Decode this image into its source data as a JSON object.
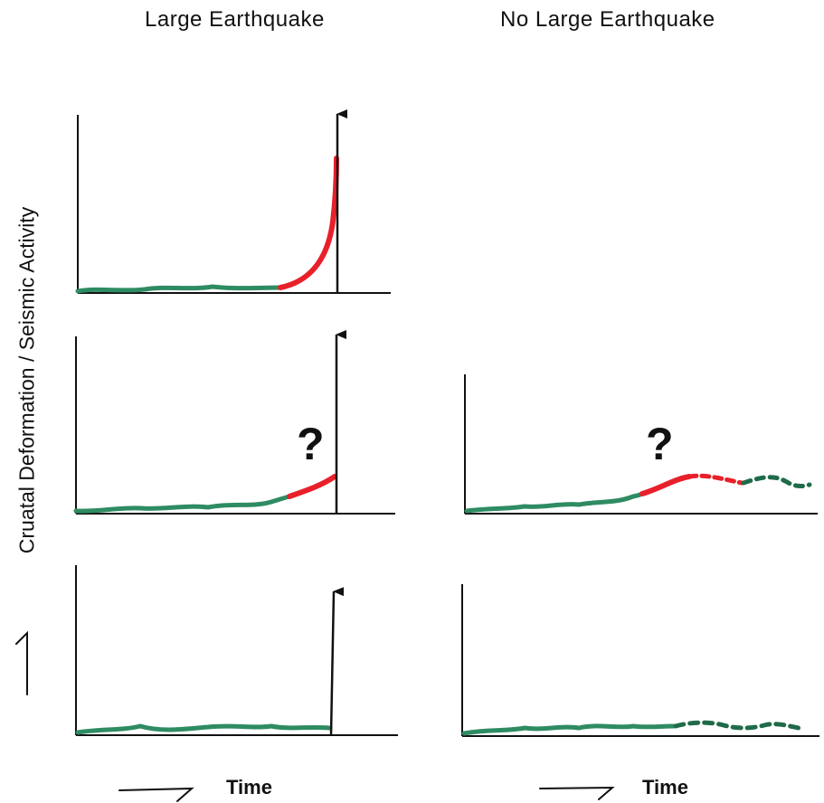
{
  "titles": {
    "left": "Large Earthquake",
    "right": "No Large Earthquake"
  },
  "y_axis_label": "Cruatal Deformation / Seismic Activity",
  "x_axis_label_left": "Time",
  "x_axis_label_right": "Time",
  "question_mark": "?",
  "colors": {
    "baseline": "#2e8b62",
    "accelerating": "#e8202a",
    "axis": "#111111"
  }
}
